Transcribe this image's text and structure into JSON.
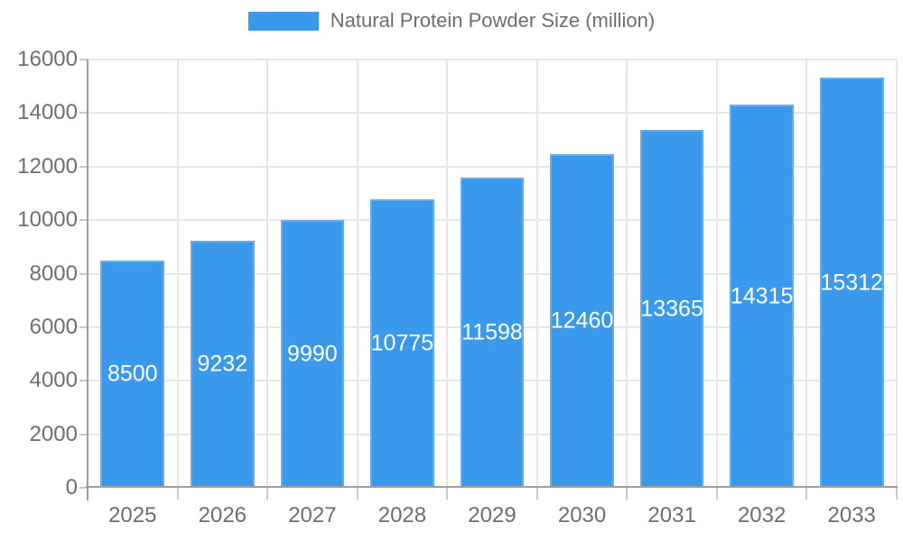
{
  "legend": {
    "label": "Natural Protein Powder Size (million)"
  },
  "chart_data": {
    "type": "bar",
    "title": "Natural Protein Powder Size (million)",
    "categories": [
      "2025",
      "2026",
      "2027",
      "2028",
      "2029",
      "2030",
      "2031",
      "2032",
      "2033"
    ],
    "values": [
      8500,
      9232,
      9990,
      10775,
      11598,
      12460,
      13365,
      14315,
      15312
    ],
    "value_labels": [
      "8500",
      "9232",
      "9990",
      "10775",
      "11598",
      "12460",
      "13365",
      "14315",
      "15312"
    ],
    "xlabel": "",
    "ylabel": "",
    "ylim": [
      0,
      16000
    ],
    "yticks": [
      0,
      2000,
      4000,
      6000,
      8000,
      10000,
      12000,
      14000,
      16000
    ],
    "ytick_labels": [
      "0",
      "2000",
      "4000",
      "6000",
      "8000",
      "10000",
      "12000",
      "14000",
      "16000"
    ],
    "grid": true,
    "legend_position": "top",
    "data_label_position": "inside-center"
  },
  "colors": {
    "accent": "#3B99EC",
    "bar_border": "#66ACF0",
    "axis_line": "#9E9E9E",
    "grid_line": "#E6E6E6",
    "tick_mark": "#C9C9C9",
    "axis_text": "#6E6E6E",
    "legend_text": "#6E6E6E",
    "value_label_text": "#FFFFFF",
    "background": "#FFFFFF"
  }
}
